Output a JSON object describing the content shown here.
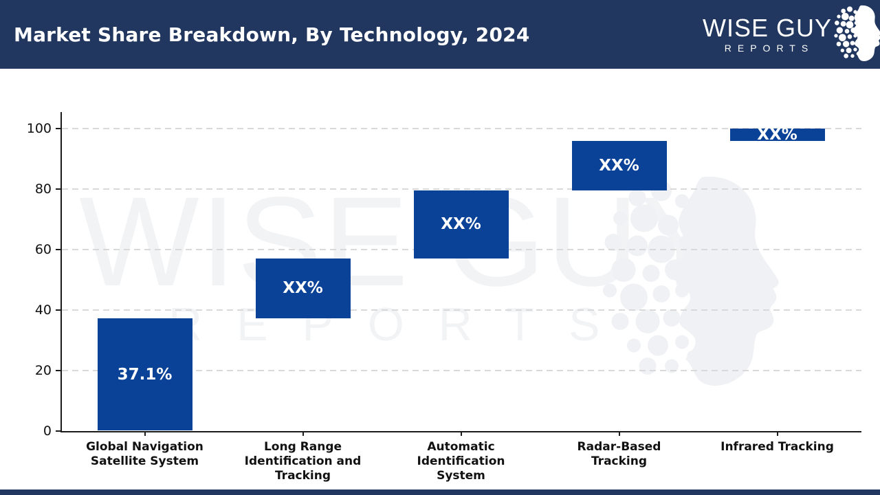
{
  "header": {
    "title": "Market Share Breakdown, By Technology, 2024",
    "logo": {
      "name": "WISE GUY",
      "subname": "REPORTS"
    }
  },
  "watermark": {
    "name": "WISE GUY",
    "subname": "REPORTS"
  },
  "colors": {
    "header_bg": "#21375f",
    "footer_bg": "#21375f",
    "bar_blue": "#0a4298",
    "bar_label": "#ffffff",
    "gridline": "#d9d9d9",
    "axis": "#1a1a1a",
    "watermark": "#f2f3f5"
  },
  "chart_data": {
    "type": "bar",
    "subtype": "waterfall",
    "title": "Market Share Breakdown, By Technology, 2024",
    "xlabel": "",
    "ylabel": "",
    "ylim": [
      0,
      100
    ],
    "yticks": [
      0,
      20,
      40,
      60,
      80,
      100
    ],
    "grid": "horizontal-dashed",
    "legend": "none",
    "categories": [
      "Global Navigation Satellite System",
      "Long Range Identification and Tracking",
      "Automatic Identification System",
      "Radar-Based Tracking",
      "Infrared Tracking"
    ],
    "category_lines": [
      [
        "Global Navigation",
        "Satellite System"
      ],
      [
        "Long Range",
        "Identification and",
        "Tracking"
      ],
      [
        "Automatic",
        "Identification",
        "System"
      ],
      [
        "Radar-Based",
        "Tracking"
      ],
      [
        "Infrared Tracking"
      ]
    ],
    "segments": [
      {
        "category": "Global Navigation Satellite System",
        "start": 0,
        "end": 37.1,
        "label": "37.1%"
      },
      {
        "category": "Long Range Identification and Tracking",
        "start": 37.1,
        "end": 57.1,
        "label": "XX%"
      },
      {
        "category": "Automatic Identification System",
        "start": 57.1,
        "end": 79.5,
        "label": "XX%"
      },
      {
        "category": "Radar-Based Tracking",
        "start": 79.5,
        "end": 96.0,
        "label": "XX%"
      },
      {
        "category": "Infrared Tracking",
        "start": 96.0,
        "end": 100.0,
        "label": "XX%"
      }
    ]
  }
}
